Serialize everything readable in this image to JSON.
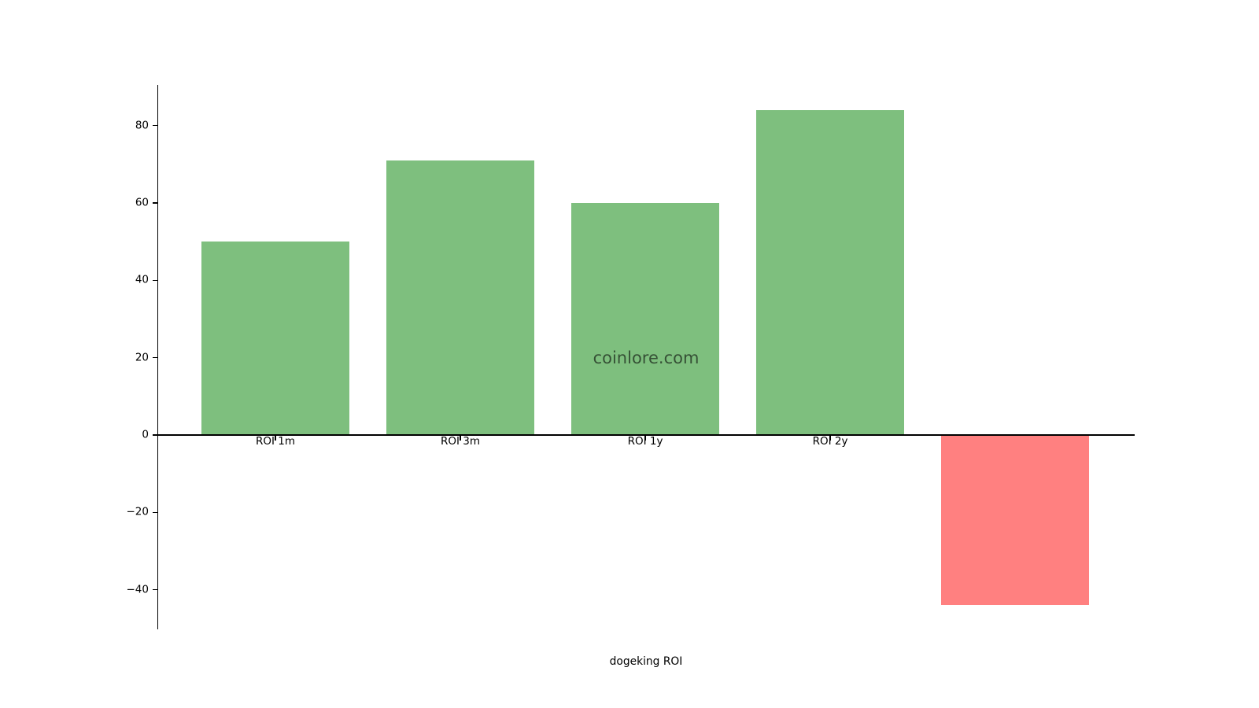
{
  "page": {
    "background": "#ffffff"
  },
  "chart_data": {
    "type": "bar",
    "title": "",
    "watermark": "coinlore.com",
    "xlabel": "dogeking ROI",
    "ylabel": "",
    "categories": [
      "ROI 1m",
      "ROI 3m",
      "ROI 1y",
      "ROI 2y",
      ""
    ],
    "values": [
      50,
      71,
      60,
      84,
      -44
    ],
    "color_positive": "#7ebf7e",
    "color_negative": "#ff8080",
    "axis_color": "#000000",
    "tick_label_color": "#000000",
    "watermark_color": "rgba(0,0,0,0.58)",
    "ylim": [
      -50.4,
      90.4
    ],
    "yticks": [
      {
        "value": 80,
        "label": "80"
      },
      {
        "value": 60,
        "label": "60"
      },
      {
        "value": 40,
        "label": "40"
      },
      {
        "value": 20,
        "label": "20"
      },
      {
        "value": 0,
        "label": "0"
      },
      {
        "value": -20,
        "label": "−20"
      },
      {
        "value": -40,
        "label": "−40"
      }
    ],
    "grid": false,
    "legend": null
  }
}
